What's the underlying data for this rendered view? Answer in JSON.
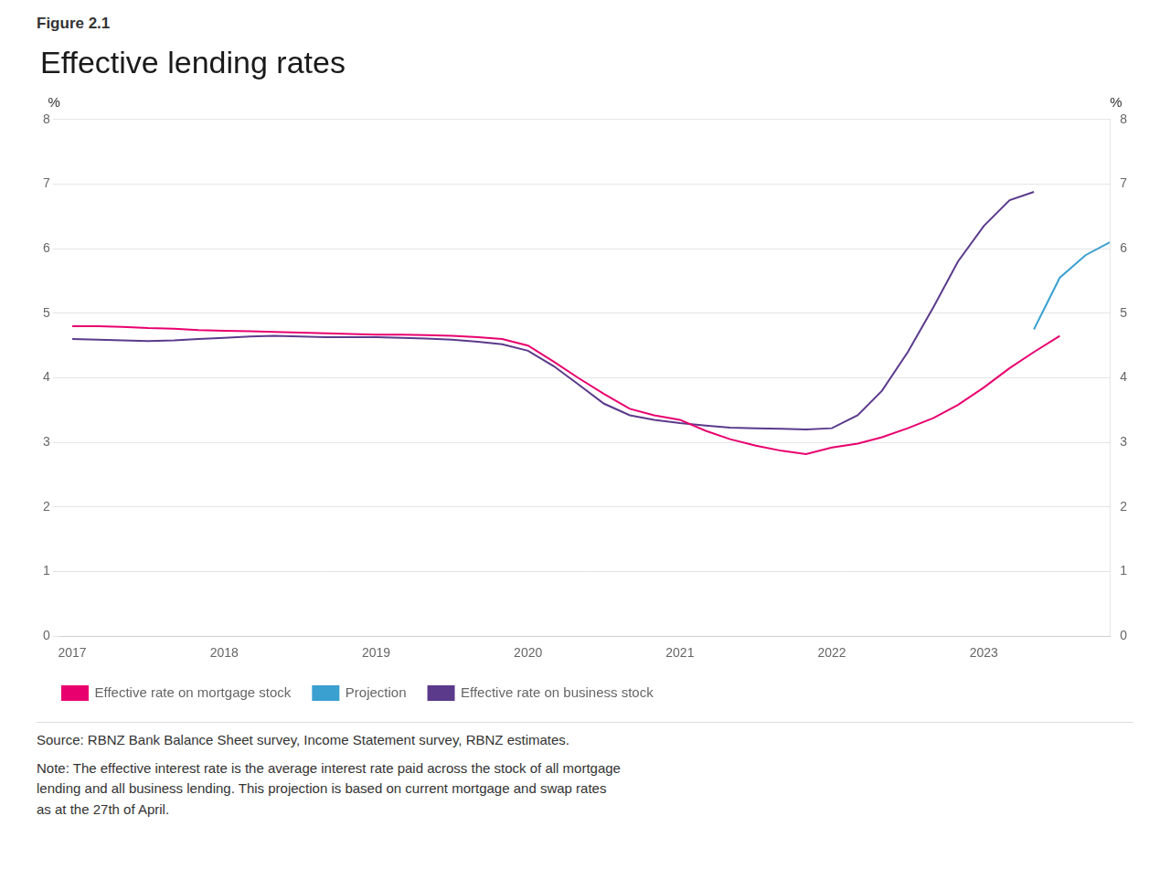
{
  "chart_data": {
    "type": "line",
    "subtitle": "Figure 2.1",
    "title": "Effective lending rates",
    "ylabel": "%",
    "y2label": "%",
    "xlim": [
      2016.92,
      2023.83
    ],
    "xticks": [
      2017,
      2018,
      2019,
      2020,
      2021,
      2022,
      2023
    ],
    "ylim": [
      0,
      8
    ],
    "yticks": [
      0,
      1,
      2,
      3,
      4,
      5,
      6,
      7,
      8
    ],
    "y2lim": [
      0,
      8
    ],
    "y2ticks": [
      0,
      1,
      2,
      3,
      4,
      5,
      6,
      7,
      8
    ],
    "grid": true,
    "legend": "bottom",
    "series": [
      {
        "name": "Effective rate on mortgage stock",
        "color": "#e8006e",
        "x": [
          2017.0,
          2017.17,
          2017.33,
          2017.5,
          2017.67,
          2017.83,
          2018.0,
          2018.17,
          2018.33,
          2018.5,
          2018.67,
          2018.83,
          2019.0,
          2019.17,
          2019.33,
          2019.5,
          2019.67,
          2019.83,
          2020.0,
          2020.17,
          2020.33,
          2020.5,
          2020.67,
          2020.83,
          2021.0,
          2021.17,
          2021.33,
          2021.5,
          2021.67,
          2021.83,
          2022.0,
          2022.17,
          2022.33,
          2022.5,
          2022.67,
          2022.83,
          2023.0,
          2023.17,
          2023.33,
          2023.5
        ],
        "values": [
          4.8,
          4.8,
          4.79,
          4.77,
          4.76,
          4.74,
          4.73,
          4.72,
          4.71,
          4.7,
          4.69,
          4.68,
          4.67,
          4.67,
          4.66,
          4.65,
          4.63,
          4.6,
          4.5,
          4.25,
          4.0,
          3.75,
          3.52,
          3.42,
          3.35,
          3.18,
          3.05,
          2.95,
          2.87,
          2.82,
          2.92,
          2.98,
          3.08,
          3.22,
          3.38,
          3.58,
          3.85,
          4.15,
          4.4,
          4.65
        ]
      },
      {
        "name": "Projection",
        "color": "#3aa0d0",
        "x": [
          2023.33,
          2023.5,
          2023.67,
          2023.83
        ],
        "values": [
          4.75,
          5.55,
          5.9,
          6.1
        ]
      },
      {
        "name": "Effective rate on business stock",
        "color": "#5b3a8c",
        "x": [
          2017.0,
          2017.17,
          2017.33,
          2017.5,
          2017.67,
          2017.83,
          2018.0,
          2018.17,
          2018.33,
          2018.5,
          2018.67,
          2018.83,
          2019.0,
          2019.17,
          2019.33,
          2019.5,
          2019.67,
          2019.83,
          2020.0,
          2020.17,
          2020.33,
          2020.5,
          2020.67,
          2020.83,
          2021.0,
          2021.17,
          2021.33,
          2021.5,
          2021.67,
          2021.83,
          2022.0,
          2022.17,
          2022.33,
          2022.5,
          2022.67,
          2022.83,
          2023.0,
          2023.17,
          2023.33
        ],
        "values": [
          4.6,
          4.59,
          4.58,
          4.57,
          4.58,
          4.6,
          4.62,
          4.64,
          4.65,
          4.64,
          4.63,
          4.63,
          4.63,
          4.62,
          4.61,
          4.59,
          4.56,
          4.52,
          4.42,
          4.18,
          3.9,
          3.6,
          3.42,
          3.35,
          3.3,
          3.26,
          3.23,
          3.22,
          3.21,
          3.2,
          3.22,
          3.42,
          3.8,
          4.4,
          5.1,
          5.8,
          6.35,
          6.75,
          6.88
        ]
      }
    ],
    "annotations": [
      "Source: RBNZ Bank Balance Sheet survey, Income Statement survey, RBNZ estimates.",
      "Note: The effective interest rate is the average interest rate paid across the stock of all mortgage\nlending and all business lending. This projection is based on current mortgage and swap rates\nas at the 27th of April."
    ]
  }
}
